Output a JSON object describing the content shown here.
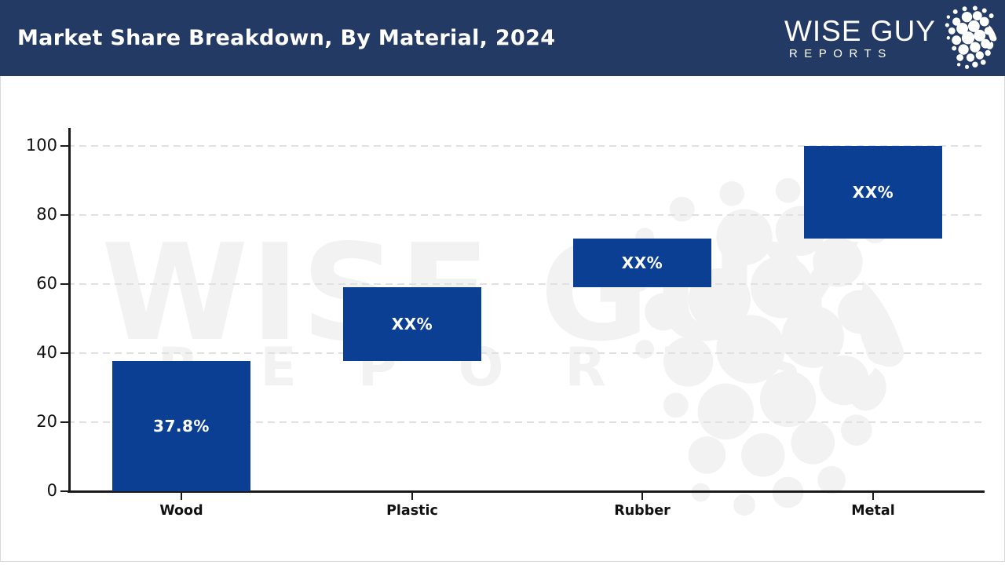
{
  "header": {
    "title": "Market Share Breakdown, By Material, 2024"
  },
  "brand": {
    "name": "WISE GUY",
    "sub": "REPORTS"
  },
  "watermark": {
    "line1": "WISE GUY",
    "line2": "REPORTS"
  },
  "colors": {
    "header_bg": "#233a64",
    "bar": "#0a3f94",
    "grid": "#e1e1e1",
    "axis": "#1a1a1a",
    "watermark": "#f2f2f2",
    "value_label": "#ffffff",
    "panel_border": "#d9d9d9"
  },
  "chart_data": {
    "type": "bar",
    "subtype": "waterfall",
    "title": "Market Share Breakdown, By Material, 2024",
    "categories": [
      "Wood",
      "Plastic",
      "Rubber",
      "Metal"
    ],
    "segments": [
      {
        "category": "Wood",
        "start": 0,
        "end": 37.8,
        "label": "37.8%"
      },
      {
        "category": "Plastic",
        "start": 37.8,
        "end": 59.1,
        "label": "XX%"
      },
      {
        "category": "Rubber",
        "start": 59.1,
        "end": 73.2,
        "label": "XX%"
      },
      {
        "category": "Metal",
        "start": 73.2,
        "end": 100,
        "label": "XX%"
      }
    ],
    "yticks": [
      0,
      20,
      40,
      60,
      80,
      100
    ],
    "ylim": [
      0,
      105
    ],
    "xlabel": "",
    "ylabel": "",
    "grid": "dashed-horizontal",
    "legend": "none",
    "bar_color": "#0a3f94",
    "value_label_color": "#ffffff"
  }
}
